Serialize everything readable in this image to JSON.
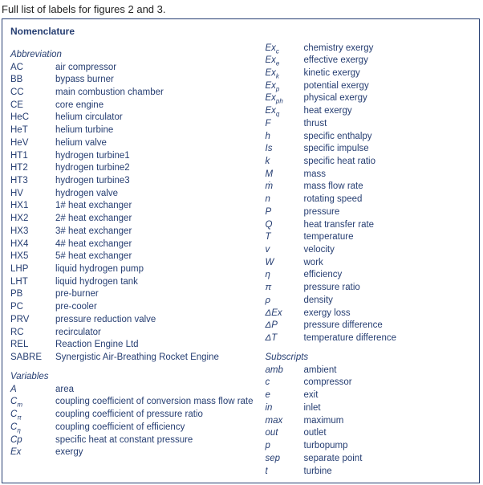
{
  "caption": "Full list of labels for figures 2 and 3.",
  "heading": "Nomenclature",
  "sections": {
    "abbrev_title": "Abbreviation",
    "variables_title": "Variables",
    "subscripts_title": "Subscripts"
  },
  "abbrev": [
    {
      "s": "AC",
      "d": "air compressor"
    },
    {
      "s": "BB",
      "d": "bypass burner"
    },
    {
      "s": "CC",
      "d": "main combustion chamber"
    },
    {
      "s": "CE",
      "d": "core engine"
    },
    {
      "s": "HeC",
      "d": "helium circulator"
    },
    {
      "s": "HeT",
      "d": "helium turbine"
    },
    {
      "s": "HeV",
      "d": "helium valve"
    },
    {
      "s": "HT1",
      "d": "hydrogen turbine1"
    },
    {
      "s": "HT2",
      "d": "hydrogen turbine2"
    },
    {
      "s": "HT3",
      "d": "hydrogen turbine3"
    },
    {
      "s": "HV",
      "d": "hydrogen valve"
    },
    {
      "s": "HX1",
      "d": "1# heat exchanger"
    },
    {
      "s": "HX2",
      "d": "2# heat exchanger"
    },
    {
      "s": "HX3",
      "d": "3# heat exchanger"
    },
    {
      "s": "HX4",
      "d": "4# heat exchanger"
    },
    {
      "s": "HX5",
      "d": "5# heat exchanger"
    },
    {
      "s": "LHP",
      "d": "liquid hydrogen pump"
    },
    {
      "s": "LHT",
      "d": "liquid hydrogen tank"
    },
    {
      "s": "PB",
      "d": "pre-burner"
    },
    {
      "s": "PC",
      "d": "pre-cooler"
    },
    {
      "s": "PRV",
      "d": "pressure reduction valve"
    },
    {
      "s": "RC",
      "d": "recirculator"
    },
    {
      "s": "REL",
      "d": "Reaction Engine Ltd"
    },
    {
      "s": "SABRE",
      "d": "Synergistic Air-Breathing Rocket Engine"
    }
  ],
  "vars_left": [
    {
      "s": "A",
      "it": true,
      "d": "area"
    },
    {
      "s": "C",
      "sub": "m",
      "it": true,
      "d": "coupling coefficient of conversion mass flow rate"
    },
    {
      "s": "C",
      "sub": "π",
      "it": true,
      "d": "coupling coefficient of pressure ratio"
    },
    {
      "s": "C",
      "sub": "η",
      "it": true,
      "d": "coupling coefficient of efficiency"
    },
    {
      "s": "Cp",
      "it": true,
      "d": "specific heat at constant pressure"
    },
    {
      "s": "Ex",
      "it": true,
      "d": "exergy"
    }
  ],
  "vars_right": [
    {
      "s": "Ex",
      "sub": "c",
      "it": true,
      "d": "chemistry exergy"
    },
    {
      "s": "Ex",
      "sub": "e",
      "it": true,
      "d": "effective exergy"
    },
    {
      "s": "Ex",
      "sub": "k",
      "it": true,
      "d": "kinetic exergy"
    },
    {
      "s": "Ex",
      "sub": "p",
      "it": true,
      "d": "potential exergy"
    },
    {
      "s": "Ex",
      "sub": "ph",
      "it": true,
      "d": "physical exergy"
    },
    {
      "s": "Ex",
      "sub": "q",
      "it": true,
      "d": "heat exergy"
    },
    {
      "s": "F",
      "it": true,
      "d": "thrust"
    },
    {
      "s": "h",
      "it": true,
      "d": "specific enthalpy"
    },
    {
      "s": "Is",
      "it": true,
      "d": "specific impulse"
    },
    {
      "s": "k",
      "it": true,
      "d": "specific heat ratio"
    },
    {
      "s": "M",
      "it": true,
      "d": "mass"
    },
    {
      "s": "ṁ",
      "it": true,
      "d": "mass flow rate"
    },
    {
      "s": "n",
      "it": true,
      "d": "rotating speed"
    },
    {
      "s": "P",
      "it": true,
      "d": "pressure"
    },
    {
      "s": "Q",
      "it": true,
      "d": "heat transfer rate"
    },
    {
      "s": "T",
      "it": true,
      "d": "temperature"
    },
    {
      "s": "v",
      "it": true,
      "d": "velocity"
    },
    {
      "s": "W",
      "it": true,
      "d": "work"
    },
    {
      "s": "η",
      "it": true,
      "d": "efficiency"
    },
    {
      "s": "π",
      "it": true,
      "d": "pressure ratio"
    },
    {
      "s": "ρ",
      "it": true,
      "d": "density"
    },
    {
      "s": "ΔEx",
      "it": true,
      "d": "exergy loss"
    },
    {
      "s": "ΔP",
      "it": true,
      "d": "pressure difference"
    },
    {
      "s": "ΔT",
      "it": true,
      "d": "temperature difference"
    }
  ],
  "subs": [
    {
      "s": "amb",
      "it": true,
      "d": "ambient"
    },
    {
      "s": "c",
      "it": true,
      "d": "compressor"
    },
    {
      "s": "e",
      "it": true,
      "d": "exit"
    },
    {
      "s": "in",
      "it": true,
      "d": "inlet"
    },
    {
      "s": "max",
      "it": true,
      "d": "maximum"
    },
    {
      "s": "out",
      "it": true,
      "d": "outlet"
    },
    {
      "s": "p",
      "it": true,
      "d": "turbopump"
    },
    {
      "s": "sep",
      "it": true,
      "d": "separate point"
    },
    {
      "s": "t",
      "it": true,
      "d": "turbine"
    }
  ]
}
